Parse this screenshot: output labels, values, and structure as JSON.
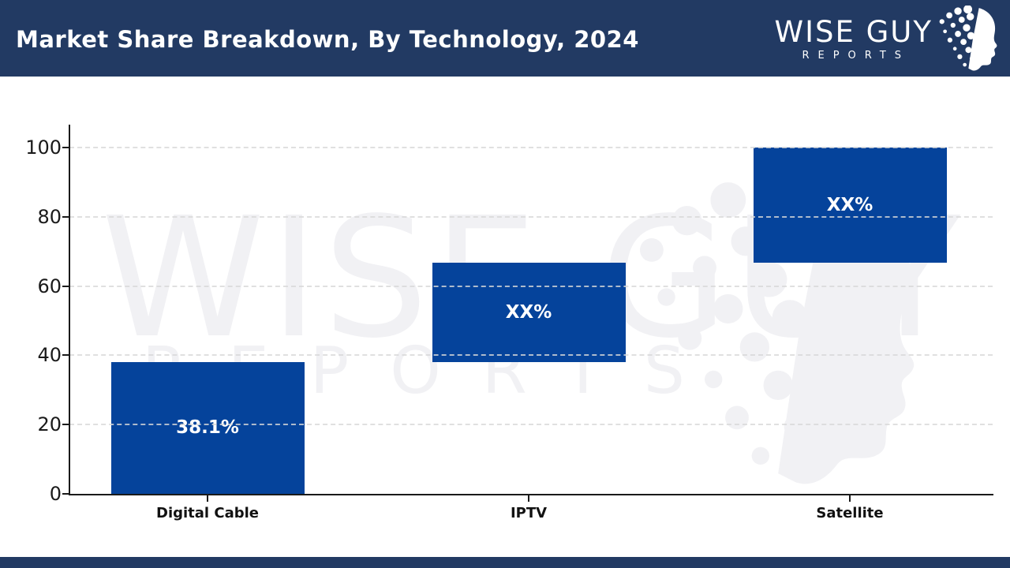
{
  "header": {
    "title": "Market Share Breakdown, By Technology, 2024",
    "logo": {
      "line1": "WISE GUY",
      "line2": "REPORTS"
    }
  },
  "watermark": {
    "line1": "WISE GUY",
    "line2": "REPORTS"
  },
  "footer": {},
  "chart_data": {
    "type": "bar",
    "subtype": "waterfall",
    "title": "Market Share Breakdown, By Technology, 2024",
    "categories": [
      "Digital Cable",
      "IPTV",
      "Satellite"
    ],
    "segments": [
      {
        "category": "Digital Cable",
        "start": 0,
        "end": 38.1,
        "value": 38.1,
        "label": "38.1%"
      },
      {
        "category": "IPTV",
        "start": 38.1,
        "end": 66.7,
        "value": 28.6,
        "label": "XX%"
      },
      {
        "category": "Satellite",
        "start": 66.7,
        "end": 100,
        "value": 33.3,
        "label": "XX%"
      }
    ],
    "xlabel": "",
    "ylabel": "",
    "ylim": [
      0,
      100
    ],
    "yticks": [
      0,
      20,
      40,
      60,
      80,
      100
    ],
    "grid": "horizontal-dashed",
    "legend": "none",
    "bar_color": "#05439B",
    "grid_color": "#d9d9d9",
    "axis_color": "#1a1a1a",
    "value_label_color": "#ffffff",
    "header_color": "#223A63",
    "watermark_color": "#f1f1f4"
  }
}
